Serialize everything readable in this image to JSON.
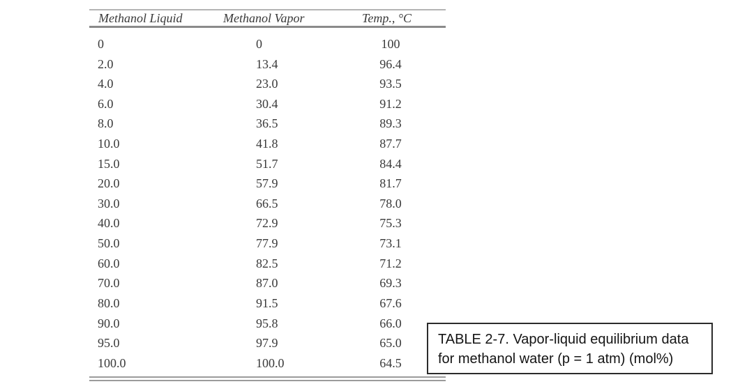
{
  "table": {
    "columns": [
      "Methanol Liquid",
      "Methanol Vapor",
      "Temp., °C"
    ],
    "rows": [
      [
        "0",
        "0",
        "100"
      ],
      [
        "2.0",
        "13.4",
        "96.4"
      ],
      [
        "4.0",
        "23.0",
        "93.5"
      ],
      [
        "6.0",
        "30.4",
        "91.2"
      ],
      [
        "8.0",
        "36.5",
        "89.3"
      ],
      [
        "10.0",
        "41.8",
        "87.7"
      ],
      [
        "15.0",
        "51.7",
        "84.4"
      ],
      [
        "20.0",
        "57.9",
        "81.7"
      ],
      [
        "30.0",
        "66.5",
        "78.0"
      ],
      [
        "40.0",
        "72.9",
        "75.3"
      ],
      [
        "50.0",
        "77.9",
        "73.1"
      ],
      [
        "60.0",
        "82.5",
        "71.2"
      ],
      [
        "70.0",
        "87.0",
        "69.3"
      ],
      [
        "80.0",
        "91.5",
        "67.6"
      ],
      [
        "90.0",
        "95.8",
        "66.0"
      ],
      [
        "95.0",
        "97.9",
        "65.0"
      ],
      [
        "100.0",
        "100.0",
        "64.5"
      ]
    ]
  },
  "caption": {
    "line1": "TABLE 2-7. Vapor-liquid equilibrium data",
    "line2": "for methanol water (p = 1 atm) (mol%)"
  },
  "colors": {
    "page_background": "#ffffff",
    "text": "#3a3a3a",
    "rule_light": "#b4b4b4",
    "rule_dark": "#8a8a8a",
    "caption_border": "#2b2b2b"
  }
}
